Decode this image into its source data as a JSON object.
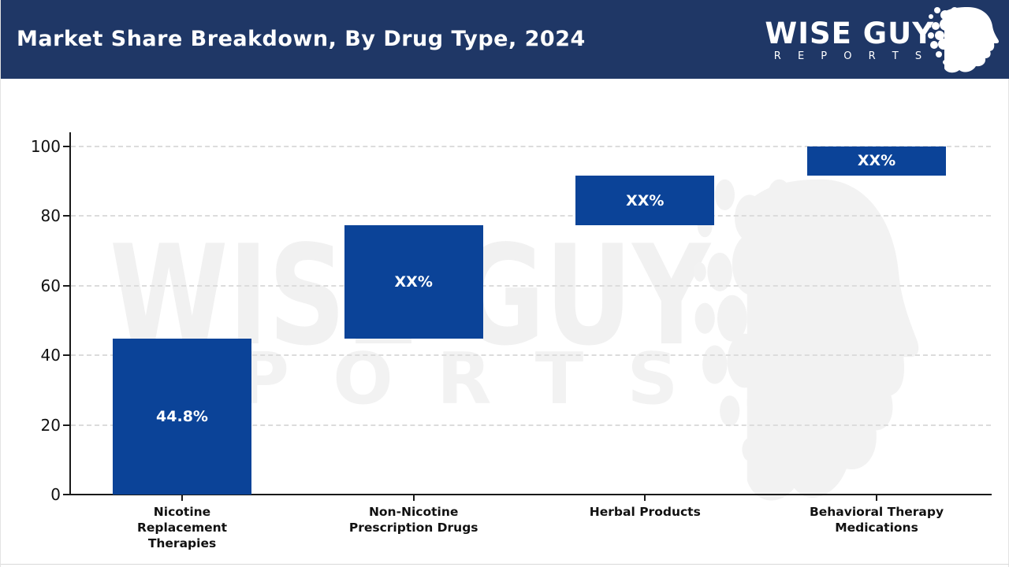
{
  "header": {
    "title": "Market Share Breakdown, By Drug Type, 2024",
    "bg_color": "#1f3766",
    "logo": {
      "brand": "WISE GUY",
      "sub": "R E P O R T S"
    }
  },
  "watermark": {
    "line1": "WISE GUY",
    "line2": "P O R T S"
  },
  "chart_data": {
    "type": "bar",
    "subtype": "waterfall",
    "title": "Market Share Breakdown, By Drug Type, 2024",
    "categories": [
      "Nicotine\nReplacement\nTherapies",
      "Non-Nicotine\nPrescription Drugs",
      "Herbal Products",
      "Behavioral Therapy\nMedications"
    ],
    "bars": [
      {
        "category": "Nicotine Replacement Therapies",
        "start": 0,
        "end": 44.8,
        "label": "44.8%"
      },
      {
        "category": "Non-Nicotine Prescription Drugs",
        "start": 44.8,
        "end": 77.2,
        "label": "XX%"
      },
      {
        "category": "Herbal Products",
        "start": 77.2,
        "end": 91.5,
        "label": "XX%"
      },
      {
        "category": "Behavioral Therapy Medications",
        "start": 91.5,
        "end": 100,
        "label": "XX%"
      }
    ],
    "ylabel": "",
    "xlabel": "",
    "yticks": [
      0,
      20,
      40,
      60,
      80,
      100
    ],
    "ylim": [
      0,
      104
    ],
    "grid": "horizontal dashed",
    "legend": "none",
    "bar_color": "#0b4398",
    "bar_label_color": "#ffffff",
    "axis_color": "#1a1a1a",
    "grid_color": "#dcdcdc"
  }
}
